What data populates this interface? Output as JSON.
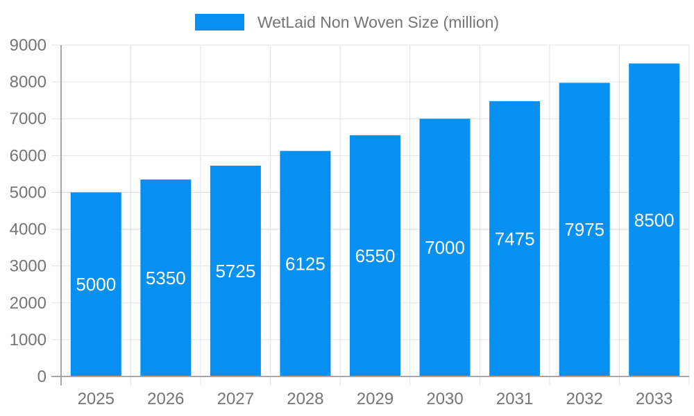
{
  "legend": {
    "label": "WetLaid Non Woven Size (million)"
  },
  "colors": {
    "bar": "#0691f2",
    "bar_label": "#ffffff",
    "axis_text": "#757575",
    "grid": "#e3e3e3",
    "axis_line": "#a6a6a6",
    "background": "#ffffff"
  },
  "chart_data": {
    "type": "bar",
    "title": "WetLaid Non Woven Size (million)",
    "series": [
      {
        "name": "WetLaid Non Woven Size (million)",
        "values": [
          5000,
          5350,
          5725,
          6125,
          6550,
          7000,
          7475,
          7975,
          8500
        ]
      }
    ],
    "categories": [
      "2025",
      "2026",
      "2027",
      "2028",
      "2029",
      "2030",
      "2031",
      "2032",
      "2033"
    ],
    "values": [
      5000,
      5350,
      5725,
      6125,
      6550,
      7000,
      7475,
      7975,
      8500
    ],
    "data_labels": [
      "5000",
      "5350",
      "5725",
      "6125",
      "6550",
      "7000",
      "7475",
      "7975",
      "8500"
    ],
    "yticks": [
      0,
      1000,
      2000,
      3000,
      4000,
      5000,
      6000,
      7000,
      8000,
      9000
    ],
    "ytick_labels": [
      "0",
      "1000",
      "2000",
      "3000",
      "4000",
      "5000",
      "6000",
      "7000",
      "8000",
      "9000"
    ],
    "xlabel": "",
    "ylabel": "",
    "ylim": [
      0,
      9000
    ],
    "ytick_step": 1000,
    "grid": true,
    "legend_position": "top",
    "data_labels_position": "inside-center"
  }
}
